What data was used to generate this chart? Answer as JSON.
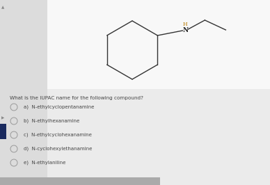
{
  "question": "What is the IUPAC name for the following compound?",
  "options": [
    "a)  N-ethylcyclopentanamine",
    "b)  N-ethylhexanamine",
    "c)  N-ethylcyclohexanamine",
    "d)  N-cyclohexylethanamine",
    "e)  N-ethylaniline"
  ],
  "bg_main": "#ebebeb",
  "bg_left_panel": "#dcdcdc",
  "bg_white_box": "#f5f5f5",
  "text_color": "#444444",
  "circle_color": "#999999",
  "structure_color": "#333333",
  "nh_h_color": "#b87a00",
  "nh_n_color": "#222222",
  "scrollbar_color": "#1a2a5e",
  "bottom_bar_color": "#aaaaaa",
  "fig_width": 3.88,
  "fig_height": 2.66,
  "dpi": 100
}
